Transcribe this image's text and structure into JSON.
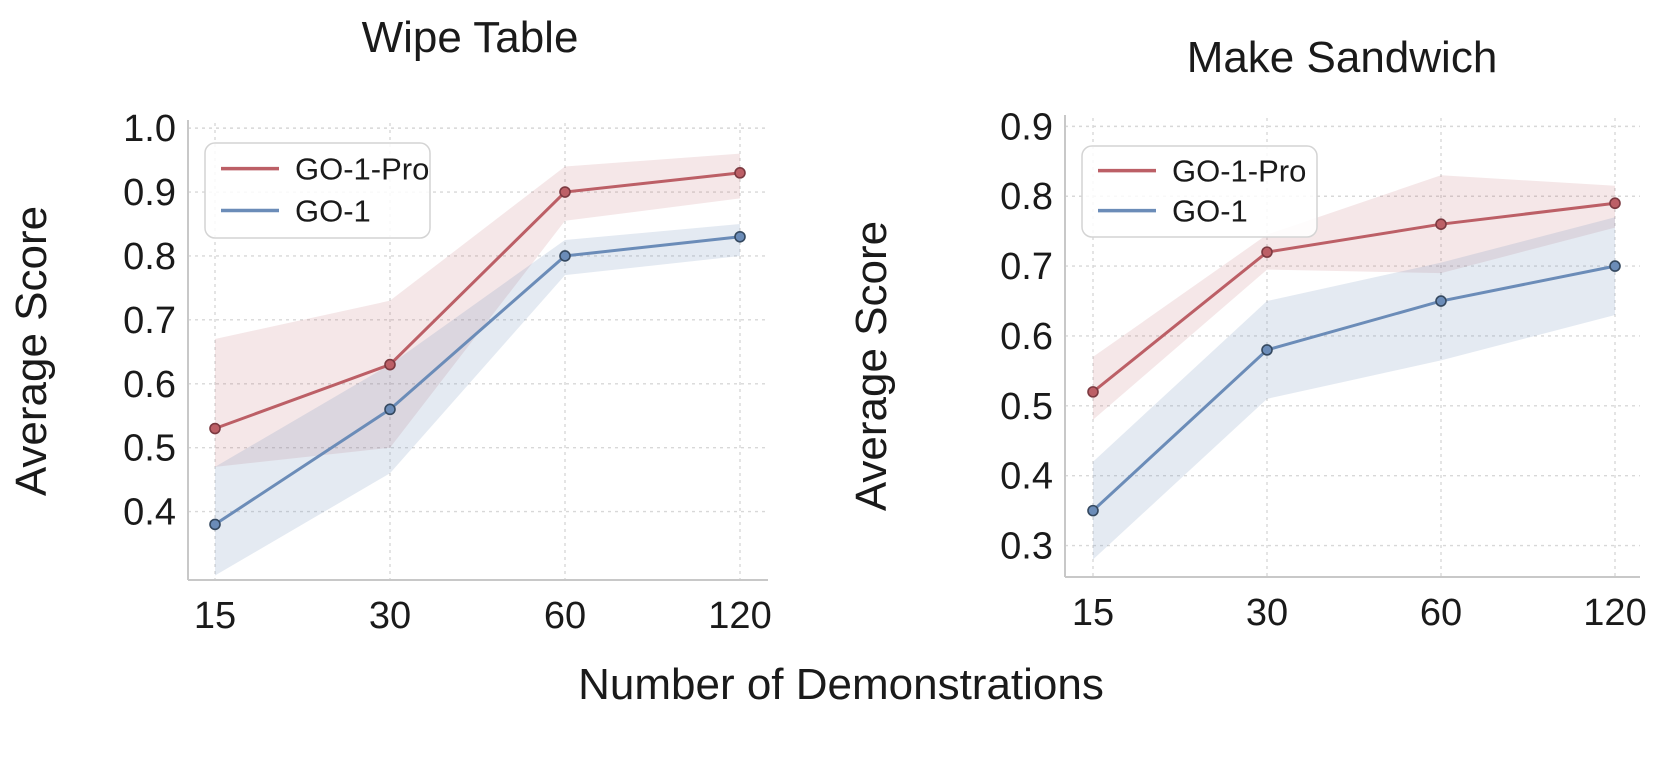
{
  "figure": {
    "shared_xlabel": "Number of Demonstrations",
    "background_color": "#ffffff",
    "text_color": "#1a1a1a",
    "grid_color": "#d8d8d8",
    "spine_color": "#c8c8c8",
    "legend_border_color": "#d4d4d4",
    "legend_fill": "rgba(255,255,255,0.85)"
  },
  "chart_data": [
    {
      "type": "line",
      "title": "Wipe Table",
      "ylabel": "Average Score",
      "xlabel": "Number of Demonstrations",
      "categories": [
        "15",
        "30",
        "60",
        "120"
      ],
      "yticks": [
        1.0,
        0.9,
        0.8,
        0.7,
        0.6,
        0.5,
        0.4
      ],
      "ylim": [
        0.293,
        1.008
      ],
      "grid": "dashed",
      "legend_position": "upper left",
      "series": [
        {
          "name": "GO-1-Pro",
          "color": "#bc5f66",
          "band_fill": "rgba(188,95,102,0.15)",
          "marker_edge": "#7c3a41",
          "values": [
            0.53,
            0.63,
            0.9,
            0.93
          ],
          "band_low": [
            0.47,
            0.5,
            0.855,
            0.89
          ],
          "band_high": [
            0.67,
            0.73,
            0.94,
            0.96
          ]
        },
        {
          "name": "GO-1",
          "color": "#6b8cb8",
          "band_fill": "rgba(107,140,184,0.18)",
          "marker_edge": "#354960",
          "values": [
            0.38,
            0.56,
            0.8,
            0.83
          ],
          "band_low": [
            0.3,
            0.46,
            0.77,
            0.8
          ],
          "band_high": [
            0.47,
            0.63,
            0.825,
            0.85
          ]
        }
      ]
    },
    {
      "type": "line",
      "title": "Make Sandwich",
      "ylabel": "Average Score",
      "xlabel": "Number of Demonstrations",
      "categories": [
        "15",
        "30",
        "60",
        "120"
      ],
      "yticks": [
        0.9,
        0.8,
        0.7,
        0.6,
        0.5,
        0.4,
        0.3
      ],
      "ylim": [
        0.255,
        0.912
      ],
      "grid": "dashed",
      "legend_position": "upper left",
      "series": [
        {
          "name": "GO-1-Pro",
          "color": "#bc5f66",
          "band_fill": "rgba(188,95,102,0.15)",
          "marker_edge": "#7c3a41",
          "values": [
            0.52,
            0.72,
            0.76,
            0.79
          ],
          "band_low": [
            0.48,
            0.695,
            0.69,
            0.755
          ],
          "band_high": [
            0.57,
            0.745,
            0.83,
            0.815
          ]
        },
        {
          "name": "GO-1",
          "color": "#6b8cb8",
          "band_fill": "rgba(107,140,184,0.18)",
          "marker_edge": "#354960",
          "values": [
            0.35,
            0.58,
            0.65,
            0.7
          ],
          "band_low": [
            0.28,
            0.51,
            0.565,
            0.63
          ],
          "band_high": [
            0.42,
            0.65,
            0.705,
            0.77
          ]
        }
      ]
    }
  ]
}
